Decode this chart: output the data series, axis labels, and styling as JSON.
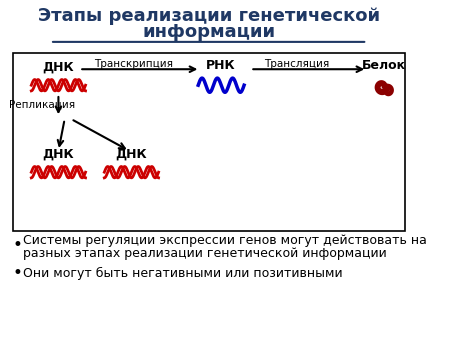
{
  "title_line1": "Этапы реализации генетической",
  "title_line2": "информации",
  "title_color": "#1F3864",
  "title_fontsize": 13,
  "background_color": "#ffffff",
  "box_color": "#000000",
  "bullet1_line1": "Системы регуляции экспрессии генов могут действовать на",
  "bullet1_line2": "разных этапах реализации генетической информации",
  "bullet2": "Они могут быть негативными или позитивными",
  "bullet_fontsize": 9,
  "dna_color": "#cc0000",
  "rna_color": "#0000cc",
  "protein_color": "#8B0000",
  "arrow_color": "#000000",
  "label_fontsize": 9,
  "label_color": "#000000",
  "transcription_label": "Транскрипция",
  "translation_label": "Трансляция",
  "replication_label": "Репликация",
  "dnk_label": "ДНК",
  "rnk_label": "РНК",
  "belok_label": "Белок"
}
